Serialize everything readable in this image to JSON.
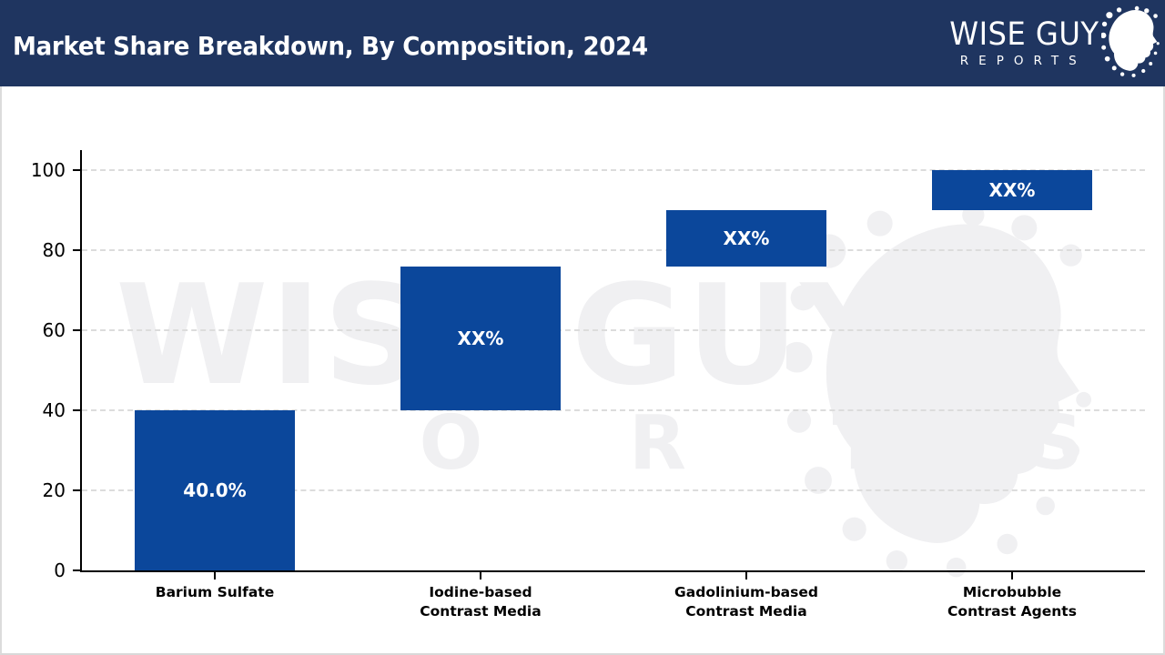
{
  "header": {
    "title": "Market Share Breakdown, By Composition, 2024",
    "logo": {
      "line1": "WISE GUY",
      "line2": "REPORTS"
    }
  },
  "watermark": {
    "line1": "WISE GUY",
    "line2": "P O R T S"
  },
  "colors": {
    "header_bg": "#1f3560",
    "bar": "#0b479b",
    "bar_label": "#ffffff",
    "gridline": "#dcdcdc",
    "axis": "#000000",
    "watermark": "#f0f0f2"
  },
  "chart_data": {
    "type": "bar",
    "subtype": "waterfall",
    "title": "Market Share Breakdown, By Composition, 2024",
    "categories": [
      "Barium Sulfate",
      "Iodine-based\nContrast Media",
      "Gadolinium-based\nContrast Media",
      "Microbubble\nContrast Agents"
    ],
    "bars": [
      {
        "category": "Barium Sulfate",
        "start": 0,
        "end": 40,
        "value": 40.0,
        "label": "40.0%"
      },
      {
        "category": "Iodine-based Contrast Media",
        "start": 40,
        "end": 76,
        "value": 36,
        "label": "XX%"
      },
      {
        "category": "Gadolinium-based Contrast Media",
        "start": 76,
        "end": 90,
        "value": 14,
        "label": "XX%"
      },
      {
        "category": "Microbubble Contrast Agents",
        "start": 90,
        "end": 100,
        "value": 10,
        "label": "XX%"
      }
    ],
    "yticks": [
      0,
      20,
      40,
      60,
      80,
      100
    ],
    "ylim": [
      0,
      100
    ],
    "xlabel": "",
    "ylabel": "",
    "grid": "horizontal-dashed",
    "legend": null
  }
}
